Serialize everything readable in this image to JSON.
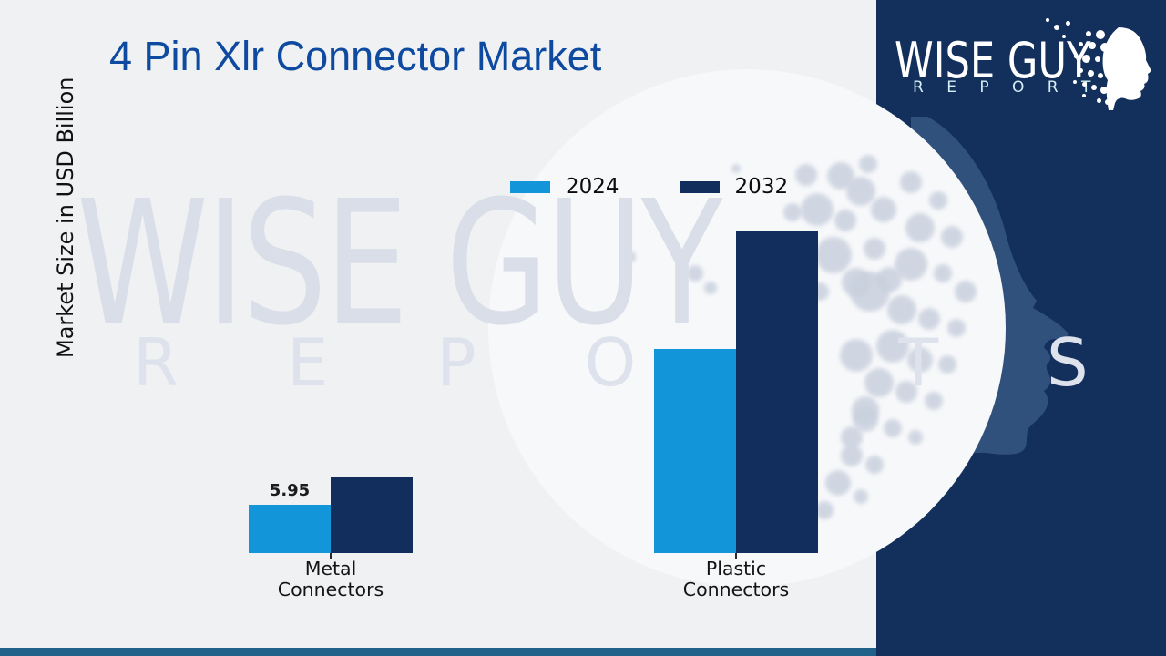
{
  "page": {
    "title": "4 Pin Xlr Connector Market"
  },
  "brand": {
    "name_top": "WISE GUY",
    "name_bottom": "R E P O R T S"
  },
  "watermark": {
    "line1": "WISE GUY",
    "line2": "R E P O R T S"
  },
  "colors": {
    "title_blue": "#0f4aa1",
    "series_2024_blue": "#1295d9",
    "series_2032_navy": "#112e5c",
    "panel_navy": "#13305c",
    "footer_teal": "#20628a"
  },
  "chart_data": {
    "type": "bar",
    "title": "4 Pin Xlr Connector Market",
    "ylabel": "Market Size in USD Billion",
    "xlabel": "",
    "categories": [
      "Metal Connectors",
      "Plastic Connectors"
    ],
    "series": [
      {
        "name": "2024",
        "color": "#1295d9",
        "values": [
          5.95,
          25.1
        ]
      },
      {
        "name": "2032",
        "color": "#112e5c",
        "values": [
          9.3,
          39.6
        ]
      }
    ],
    "value_labels": [
      {
        "series": "2024",
        "category": "Metal Connectors",
        "text": "5.95"
      }
    ],
    "legend": {
      "position": "top",
      "entries": [
        "2024",
        "2032"
      ]
    },
    "grid": false,
    "baseline_value": 0
  }
}
